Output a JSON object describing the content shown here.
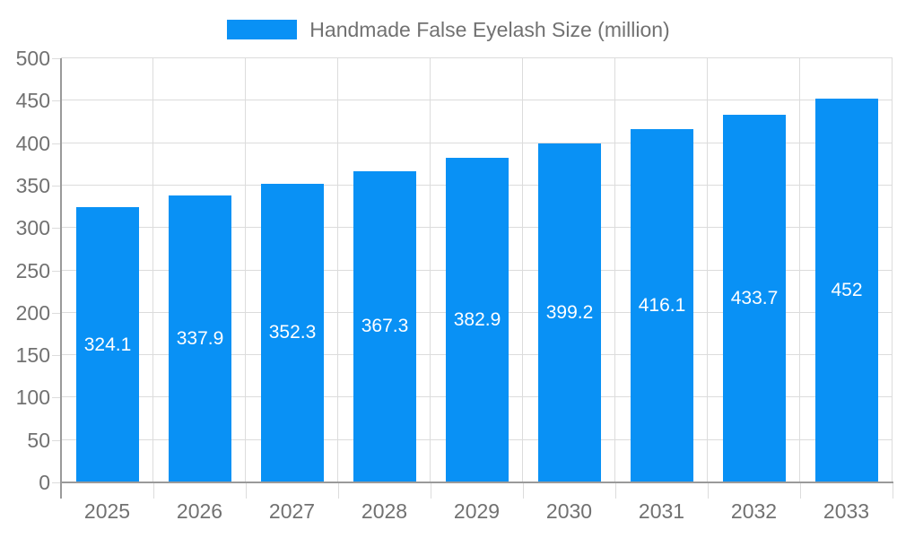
{
  "legend": {
    "label": "Handmade False Eyelash Size (million)"
  },
  "chart_data": {
    "type": "bar",
    "title": "Handmade False Eyelash Size (million)",
    "categories": [
      "2025",
      "2026",
      "2027",
      "2028",
      "2029",
      "2030",
      "2031",
      "2032",
      "2033"
    ],
    "values": [
      324.1,
      337.9,
      352.3,
      367.3,
      382.9,
      399.2,
      416.1,
      433.7,
      452
    ],
    "value_labels": [
      "324.1",
      "337.9",
      "352.3",
      "367.3",
      "382.9",
      "399.2",
      "416.1",
      "433.7",
      "452"
    ],
    "xlabel": "",
    "ylabel": "",
    "ylim": [
      0,
      500
    ],
    "y_ticks": [
      0,
      50,
      100,
      150,
      200,
      250,
      300,
      350,
      400,
      450,
      500
    ],
    "grid": true,
    "legend_position": "top",
    "colors": {
      "bar": "#0991f5",
      "axis_text": "#717171",
      "grid_line": "#dcdcdc",
      "axis_line": "#9a9a9a",
      "value_label": "#ffffff",
      "background": "#ffffff"
    }
  }
}
